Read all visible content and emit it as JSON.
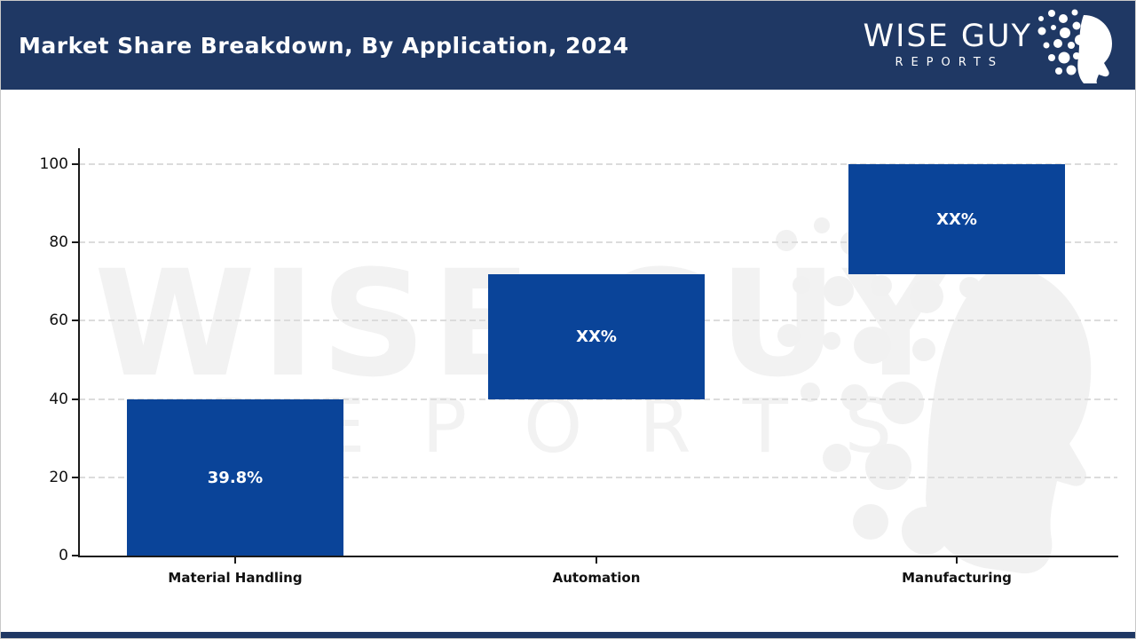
{
  "header": {
    "title": "Market Share Breakdown, By Application, 2024",
    "bg_color": "#1f3864",
    "logo": {
      "brand": "WISE GUY",
      "sub": "REPORTS"
    }
  },
  "watermark": {
    "brand": "WISE GUY",
    "sub": "REPORTS"
  },
  "chart_data": {
    "type": "bar",
    "subtype": "waterfall",
    "title": "Market Share Breakdown, By Application, 2024",
    "categories": [
      "Material Handling",
      "Automation",
      "Manufacturing"
    ],
    "segments": [
      {
        "category": "Material Handling",
        "start": 0,
        "end": 39.8,
        "label": "39.8%"
      },
      {
        "category": "Automation",
        "start": 39.8,
        "end": 71.8,
        "label": "XX%"
      },
      {
        "category": "Manufacturing",
        "start": 71.8,
        "end": 100,
        "label": "XX%"
      }
    ],
    "ylim": [
      0,
      100
    ],
    "yticks": [
      0,
      20,
      40,
      60,
      80,
      100
    ],
    "grid": "horizontal-dashed",
    "bar_color": "#0a4499",
    "bar_label_color": "#ffffff",
    "legend": "none"
  }
}
